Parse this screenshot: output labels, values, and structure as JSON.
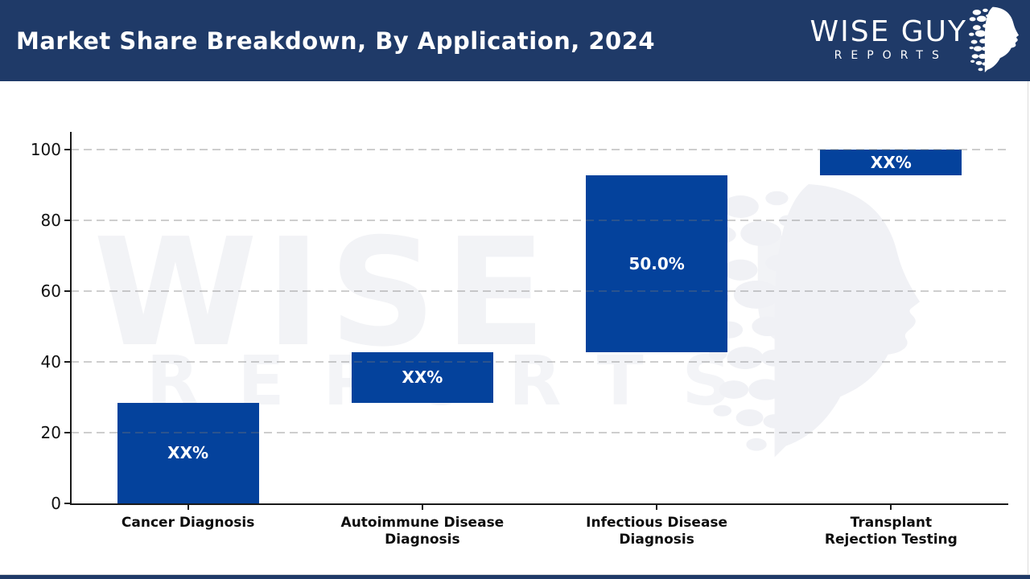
{
  "header": {
    "title": "Market Share Breakdown, By Application, 2024",
    "logo": {
      "brand_top": "WISE GUY",
      "brand_bottom": "REPORTS"
    }
  },
  "watermark": {
    "line1": "WISE GU",
    "line2": "REPORTS"
  },
  "chart_data": {
    "type": "bar",
    "subtype": "floating-waterfall",
    "title": "Market Share Breakdown, By Application, 2024",
    "xlabel": "",
    "ylabel": "",
    "categories": [
      "Cancer Diagnosis",
      "Autoimmune Disease\nDiagnosis",
      "Infectious Disease\nDiagnosis",
      "Transplant\nRejection Testing"
    ],
    "bars": [
      {
        "category": "Cancer Diagnosis",
        "start": 0,
        "end": 28.5,
        "label": "XX%"
      },
      {
        "category": "Autoimmune Disease Diagnosis",
        "start": 28.5,
        "end": 42.8,
        "label": "XX%"
      },
      {
        "category": "Infectious Disease Diagnosis",
        "start": 42.8,
        "end": 92.8,
        "label": "50.0%"
      },
      {
        "category": "Transplant Rejection Testing",
        "start": 92.8,
        "end": 100,
        "label": "XX%"
      }
    ],
    "yticks": [
      0,
      20,
      40,
      60,
      80,
      100
    ],
    "ylim": [
      0,
      105
    ],
    "grid": "horizontal-dashed",
    "legend": null,
    "bar_color": "#04429c"
  },
  "colors": {
    "header_bg": "#1f3a68",
    "footer_bg": "#1f3a68",
    "bar": "#04429c",
    "axis": "#1a1a1a",
    "grid_dash": "#d6d6d6",
    "on_bar_text": "#ffffff",
    "watermark": "#f2f3f6"
  }
}
